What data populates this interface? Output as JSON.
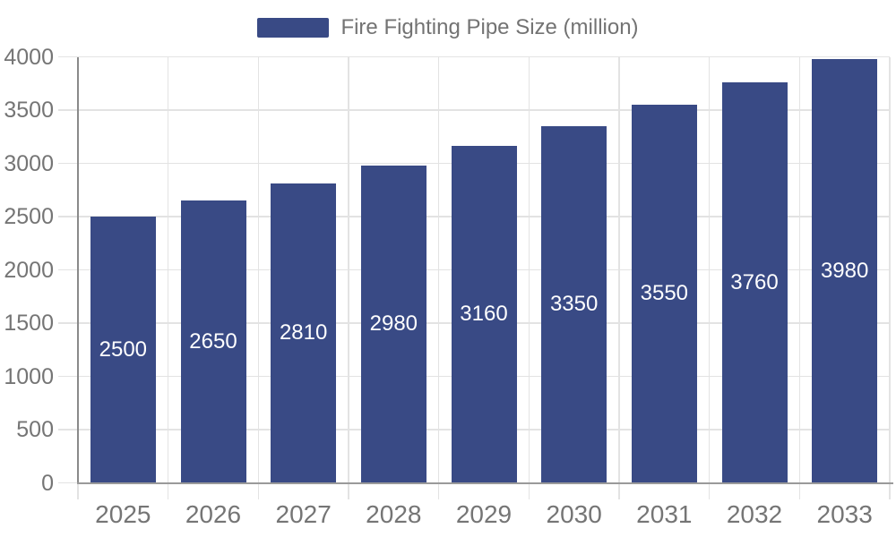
{
  "legend": {
    "label": "Fire Fighting Pipe Size (million)",
    "swatch_color": "#394A85"
  },
  "chart_data": {
    "type": "bar",
    "title": "Fire Fighting Pipe Size (million)",
    "series_name": "Fire Fighting Pipe Size (million)",
    "categories": [
      "2025",
      "2026",
      "2027",
      "2028",
      "2029",
      "2030",
      "2031",
      "2032",
      "2033"
    ],
    "values": [
      2500,
      2650,
      2810,
      2980,
      3160,
      3350,
      3550,
      3760,
      3980
    ],
    "ylim": [
      0,
      4000
    ],
    "yticks": [
      0,
      500,
      1000,
      1500,
      2000,
      2500,
      3000,
      3500,
      4000
    ],
    "bar_color": "#394A85",
    "value_label_color": "#FFFFFF",
    "axis_label_color": "#757575",
    "grid": true,
    "legend_position": "top"
  }
}
